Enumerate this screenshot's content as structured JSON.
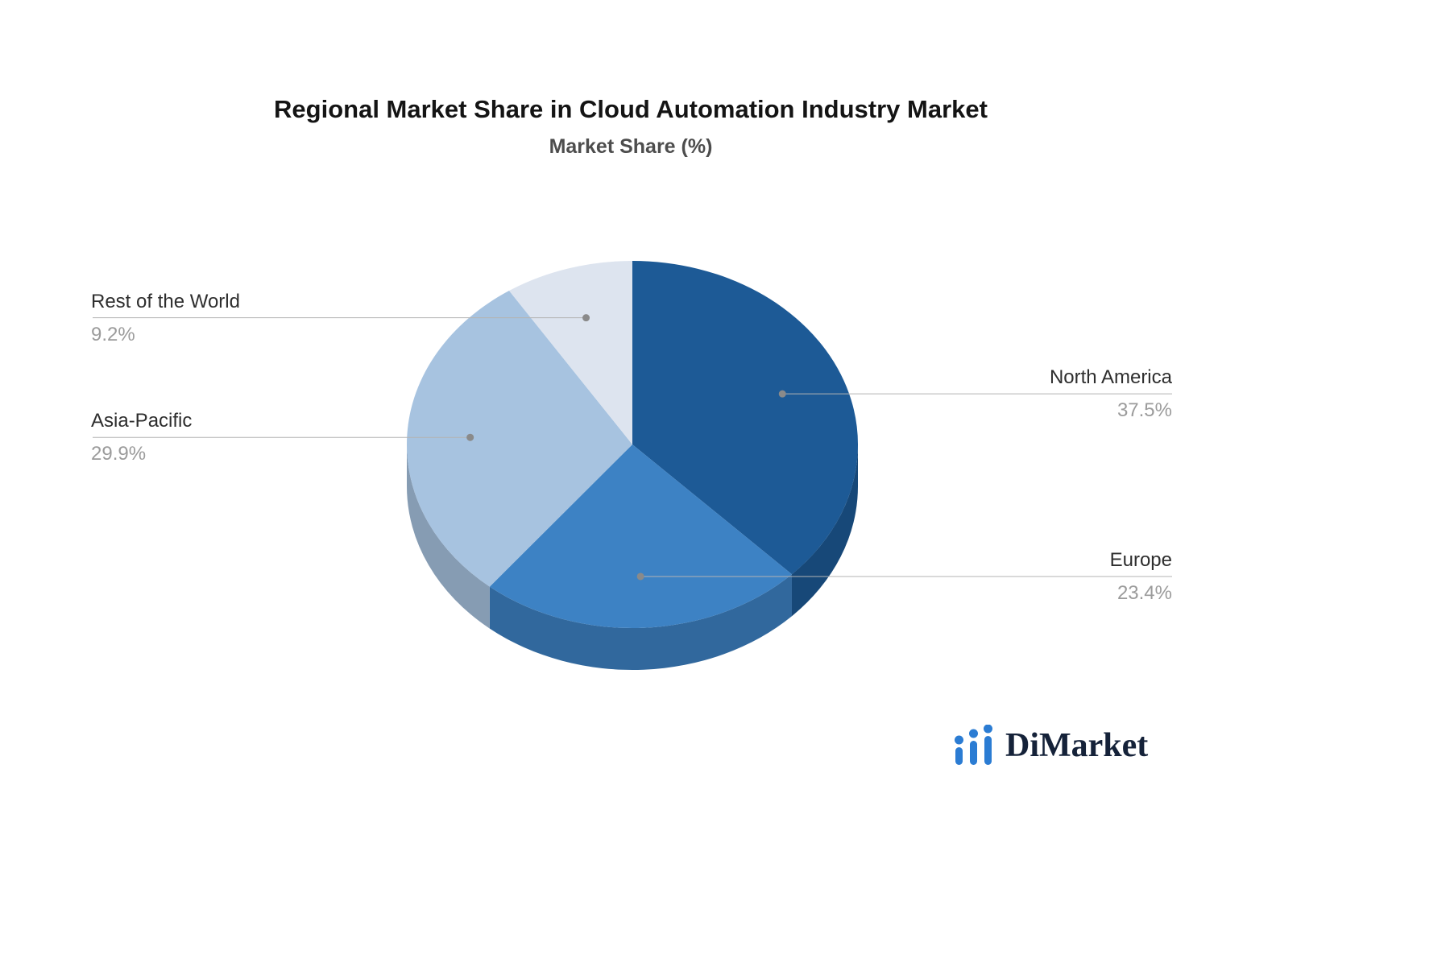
{
  "chart_data": {
    "type": "pie",
    "title": "Regional Market Share in Cloud Automation Industry Market",
    "subtitle": "Market Share (%)",
    "unit": "%",
    "legend_position": "none",
    "label_style": "callout-lines-with-name-and-percent",
    "effect": "3d-depth",
    "categories": [
      "North America",
      "Europe",
      "Asia-Pacific",
      "Rest of the World"
    ],
    "values": [
      37.5,
      23.4,
      29.9,
      9.2
    ],
    "slices": [
      {
        "name": "North America",
        "value": 37.5,
        "label": "37.5%",
        "color": "#1d5a96"
      },
      {
        "name": "Europe",
        "value": 23.4,
        "label": "23.4%",
        "color": "#3d82c4"
      },
      {
        "name": "Asia-Pacific",
        "value": 29.9,
        "label": "29.9%",
        "color": "#a7c3e0"
      },
      {
        "name": "Rest of the World",
        "value": 9.2,
        "label": "9.2%",
        "color": "#dde4ef"
      }
    ],
    "line_color": "#b3b3b3",
    "dot_color": "#8a8a8a"
  },
  "branding": {
    "logo_text": "DiMarket",
    "logo_icon": "bar-chart-logo-icon",
    "icon_color": "#2b7cd3",
    "text_color": "#152239"
  }
}
